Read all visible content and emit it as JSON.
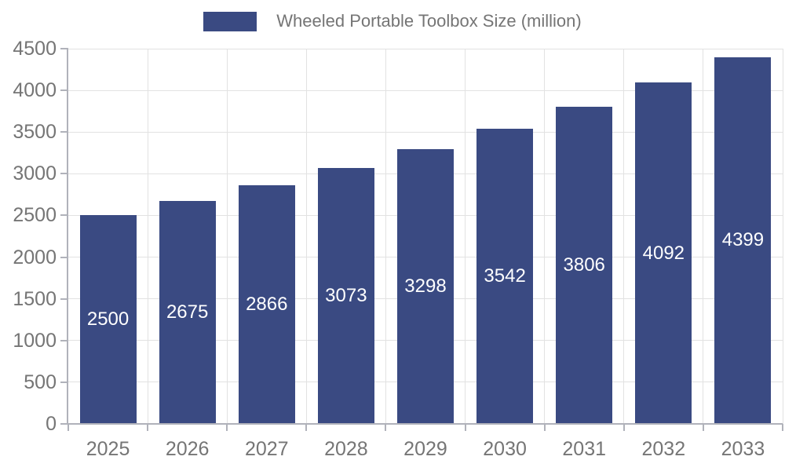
{
  "legend": {
    "series_label": "Wheeled Portable Toolbox Size (million)"
  },
  "chart_data": {
    "type": "bar",
    "title": "Wheeled Portable Toolbox Size (million)",
    "categories": [
      "2025",
      "2026",
      "2027",
      "2028",
      "2029",
      "2030",
      "2031",
      "2032",
      "2033"
    ],
    "values": [
      2500,
      2675,
      2866,
      3073,
      3298,
      3542,
      3806,
      4092,
      4399
    ],
    "xlabel": "",
    "ylabel": "",
    "ylim": [
      0,
      4500
    ],
    "ytick_step": 500,
    "ytick_labels": [
      "0",
      "500",
      "1000",
      "1500",
      "2000",
      "2500",
      "3000",
      "3500",
      "4000",
      "4500"
    ],
    "grid": true,
    "legend_position": "top-center",
    "value_labels": "inside-center-white",
    "colors": {
      "bar": "#3A4A82",
      "value_label": "#ffffff",
      "axis_text": "#757575",
      "grid": "#e2e2e2",
      "axis_line": "#b0b2ba",
      "background": "#ffffff"
    }
  }
}
